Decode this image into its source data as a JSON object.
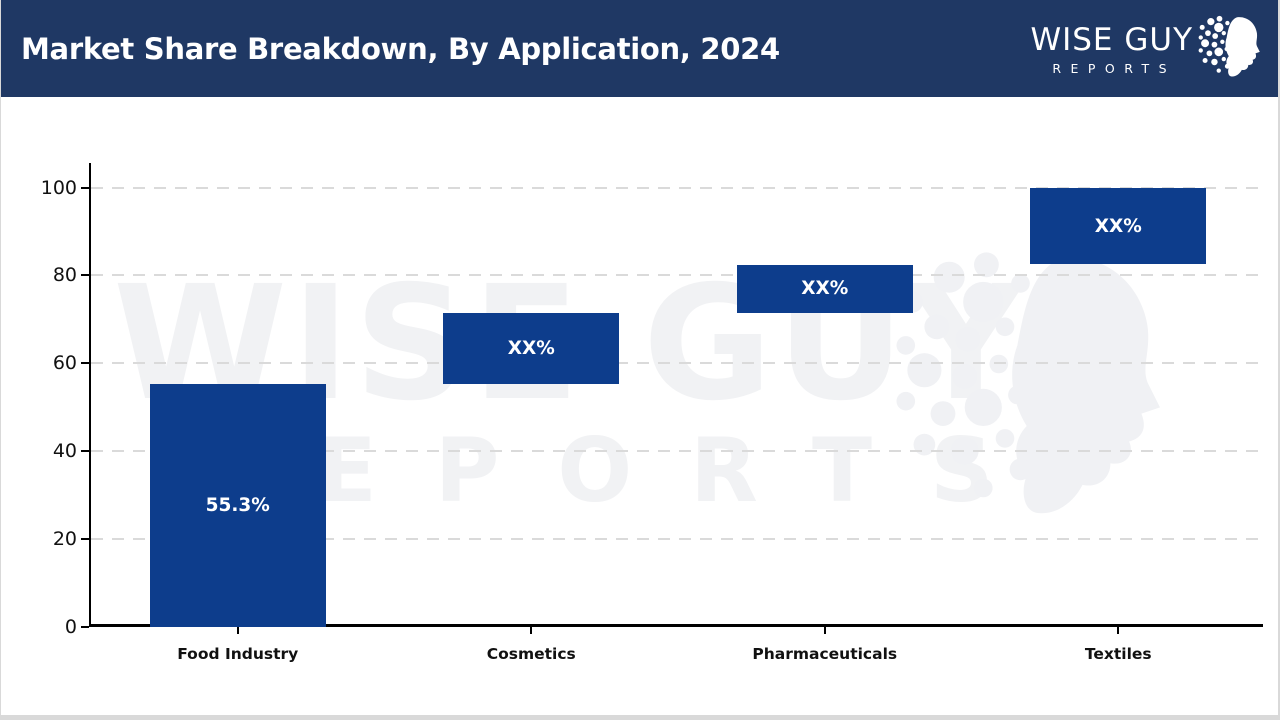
{
  "page": {
    "background": "#ffffff",
    "frame_color": "#d9d9d9"
  },
  "header": {
    "background": "#1f3864",
    "title": "Market Share Breakdown, By Application, 2024",
    "logo": {
      "line1": "WISE GUY",
      "line2": "REPORTS"
    }
  },
  "watermark": {
    "line1": "WISE GUY",
    "line2": "REPORTS"
  },
  "chart_data": {
    "type": "bar",
    "subtype": "waterfall",
    "title": "Market Share Breakdown, By Application, 2024",
    "categories": [
      "Food Industry",
      "Cosmetics",
      "Pharmaceuticals",
      "Textiles"
    ],
    "segments": [
      {
        "category": "Food Industry",
        "start": 0,
        "end": 55.3,
        "label": "55.3%"
      },
      {
        "category": "Cosmetics",
        "start": 55.3,
        "end": 71.5,
        "label": "XX%"
      },
      {
        "category": "Pharmaceuticals",
        "start": 71.5,
        "end": 82.5,
        "label": "XX%"
      },
      {
        "category": "Textiles",
        "start": 82.5,
        "end": 100,
        "label": "XX%"
      }
    ],
    "ytick_values": [
      0,
      20,
      40,
      60,
      80,
      100
    ],
    "ytick_labels": [
      "0",
      "20",
      "40",
      "60",
      "80",
      "100"
    ],
    "ylim": [
      0,
      105.6
    ],
    "xlabel": "",
    "ylabel": "",
    "grid": "horizontal-dashed",
    "legend": "none",
    "bar_color": "#0d3d8c",
    "bar_label_color": "#ffffff",
    "axis_color": "#000000",
    "gridline_color": "#dadada"
  }
}
